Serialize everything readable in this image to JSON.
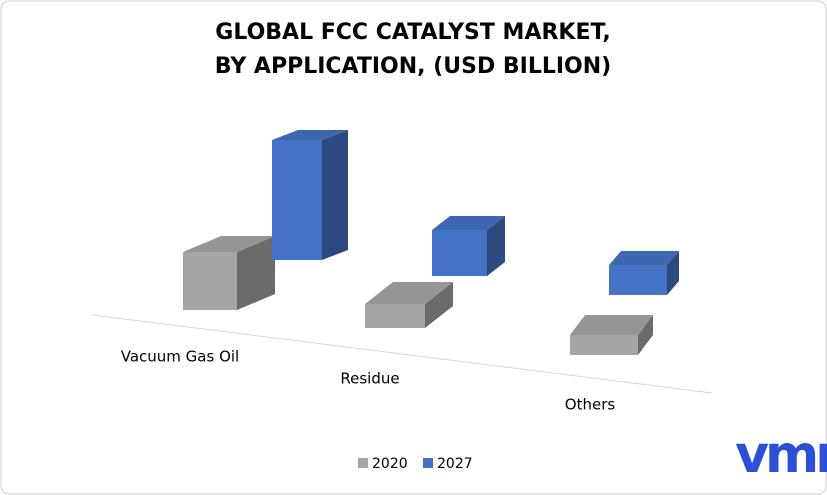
{
  "chart_data": {
    "type": "bar3d",
    "title": [
      "GLOBAL FCC CATALYST MARKET,",
      "BY APPLICATION, (USD BILLION)"
    ],
    "categories": [
      "Vacuum Gas Oil",
      "Residue",
      "Others"
    ],
    "series": [
      {
        "name": "2020",
        "color": "#a5a5a5",
        "values": [
          2.9,
          1.2,
          1.0
        ]
      },
      {
        "name": "2027",
        "color": "#4472c4",
        "values": [
          6.0,
          2.3,
          1.5
        ]
      }
    ],
    "logo": "vmr"
  }
}
